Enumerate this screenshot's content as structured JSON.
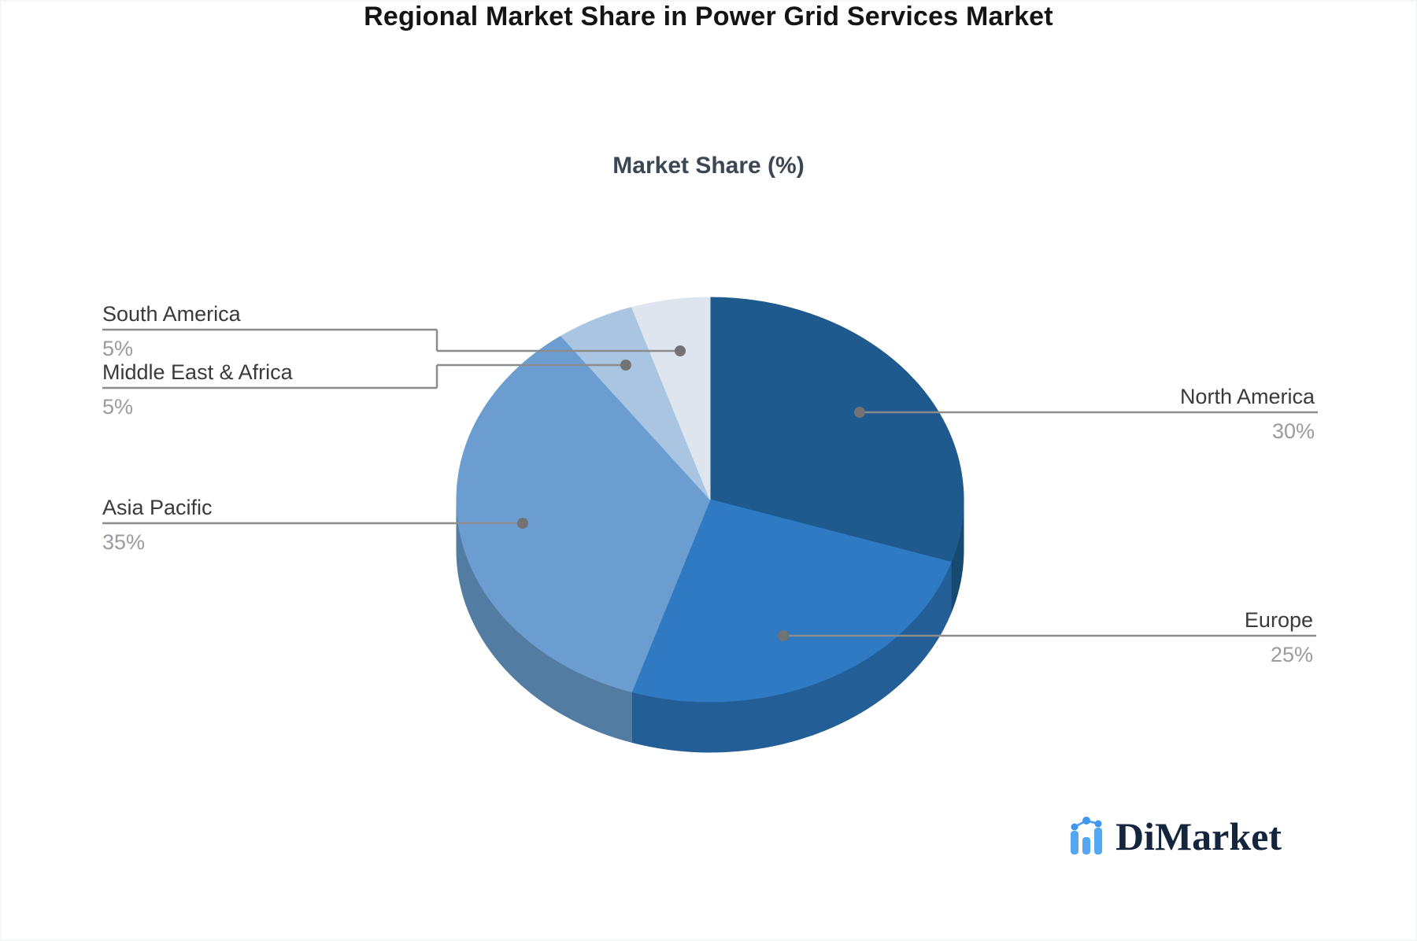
{
  "chart_data": {
    "type": "pie",
    "style": "3d",
    "title": "Regional Market Share in Power Grid Services Market",
    "subtitle": "Market Share (%)",
    "unit": "%",
    "start_angle_deg": -90,
    "direction": "clockwise",
    "legend_position": "none",
    "slices": [
      {
        "label": "North America",
        "value": 30,
        "display": "30%",
        "color": "#1E5A8D",
        "side_color": "#174A70"
      },
      {
        "label": "Europe",
        "value": 25,
        "display": "25%",
        "color": "#2F7AC3",
        "side_color": "#245E96"
      },
      {
        "label": "Asia Pacific",
        "value": 35,
        "display": "35%",
        "color": "#6C9DD1",
        "side_color": "#537CA3"
      },
      {
        "label": "Middle East & Africa",
        "value": 5,
        "display": "5%",
        "color": "#A9C5E2",
        "side_color": "#8FAFD0"
      },
      {
        "label": "South America",
        "value": 5,
        "display": "5%",
        "color": "#DEE5EF",
        "side_color": "#C2CFDE"
      }
    ],
    "leader_line_color": "#8C8C8C",
    "leader_dot_color": "#737373",
    "label_color": "#3A3A3A",
    "value_color": "#9A9AA0"
  },
  "logo": {
    "text": "DiMarket",
    "icon": "bar-chart-trend-icon"
  }
}
